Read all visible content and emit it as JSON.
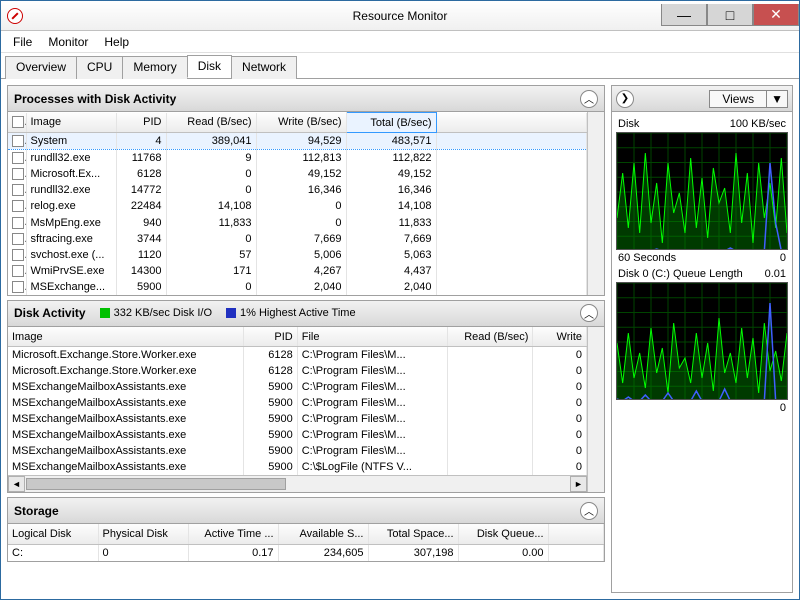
{
  "window": {
    "title": "Resource Monitor"
  },
  "menu": [
    "File",
    "Monitor",
    "Help"
  ],
  "tabs": [
    "Overview",
    "CPU",
    "Memory",
    "Disk",
    "Network"
  ],
  "activeTab": "Disk",
  "processesPanel": {
    "title": "Processes with Disk Activity",
    "columns": [
      "Image",
      "PID",
      "Read (B/sec)",
      "Write (B/sec)",
      "Total (B/sec)"
    ],
    "sortedCol": 4,
    "rows": [
      [
        "System",
        "4",
        "389,041",
        "94,529",
        "483,571"
      ],
      [
        "rundll32.exe",
        "11768",
        "9",
        "112,813",
        "112,822"
      ],
      [
        "Microsoft.Ex...",
        "6128",
        "0",
        "49,152",
        "49,152"
      ],
      [
        "rundll32.exe",
        "14772",
        "0",
        "16,346",
        "16,346"
      ],
      [
        "relog.exe",
        "22484",
        "14,108",
        "0",
        "14,108"
      ],
      [
        "MsMpEng.exe",
        "940",
        "11,833",
        "0",
        "11,833"
      ],
      [
        "sftracing.exe",
        "3744",
        "0",
        "7,669",
        "7,669"
      ],
      [
        "svchost.exe (...",
        "1120",
        "57",
        "5,006",
        "5,063"
      ],
      [
        "WmiPrvSE.exe",
        "14300",
        "171",
        "4,267",
        "4,437"
      ],
      [
        "MSExchange...",
        "5900",
        "0",
        "2,040",
        "2,040"
      ]
    ],
    "selectedRow": 0
  },
  "diskActivityPanel": {
    "title": "Disk Activity",
    "legend1": {
      "color": "#00c000",
      "text": "332 KB/sec Disk I/O"
    },
    "legend2": {
      "color": "#2030c0",
      "text": "1% Highest Active Time"
    },
    "columns": [
      "Image",
      "PID",
      "File",
      "Read (B/sec)",
      "Write"
    ],
    "rows": [
      [
        "Microsoft.Exchange.Store.Worker.exe",
        "6128",
        "C:\\Program Files\\M...",
        "",
        "0"
      ],
      [
        "Microsoft.Exchange.Store.Worker.exe",
        "6128",
        "C:\\Program Files\\M...",
        "",
        "0"
      ],
      [
        "MSExchangeMailboxAssistants.exe",
        "5900",
        "C:\\Program Files\\M...",
        "",
        "0"
      ],
      [
        "MSExchangeMailboxAssistants.exe",
        "5900",
        "C:\\Program Files\\M...",
        "",
        "0"
      ],
      [
        "MSExchangeMailboxAssistants.exe",
        "5900",
        "C:\\Program Files\\M...",
        "",
        "0"
      ],
      [
        "MSExchangeMailboxAssistants.exe",
        "5900",
        "C:\\Program Files\\M...",
        "",
        "0"
      ],
      [
        "MSExchangeMailboxAssistants.exe",
        "5900",
        "C:\\Program Files\\M...",
        "",
        "0"
      ],
      [
        "MSExchangeMailboxAssistants.exe",
        "5900",
        "C:\\$LogFile (NTFS V...",
        "",
        "0"
      ]
    ]
  },
  "storagePanel": {
    "title": "Storage",
    "columns": [
      "Logical Disk",
      "Physical Disk",
      "Active Time ...",
      "Available S...",
      "Total Space...",
      "Disk Queue..."
    ],
    "rows": [
      [
        "C:",
        "0",
        "0.17",
        "234,605",
        "307,198",
        "0.00"
      ]
    ]
  },
  "rightPanel": {
    "viewsLabel": "Views",
    "graph1": {
      "topLeft": "Disk",
      "topRight": "100 KB/sec",
      "bottomLeft": "60 Seconds",
      "bottomRight": "0"
    },
    "graph2": {
      "topLeft": "Disk 0 (C:) Queue Length",
      "topRight": "0.01",
      "bottomRight": "0"
    }
  },
  "graphStyle": {
    "bg": "#000000",
    "gridColor": "#004400",
    "seriesColor": "#00ff00",
    "series2Color": "#4060ff",
    "width": 170,
    "height": 118,
    "gridCols": 10,
    "gridRows": 8,
    "series1_a": [
      85,
      40,
      95,
      30,
      100,
      20,
      90,
      50,
      110,
      30,
      80,
      60,
      100,
      25,
      95,
      45,
      105,
      35,
      70,
      55,
      100,
      20,
      90,
      40,
      110,
      30,
      85,
      50,
      95,
      25,
      100
    ],
    "series1_b": [
      60,
      100,
      50,
      95,
      70,
      105,
      45,
      90,
      65,
      110,
      40,
      85,
      75,
      100,
      50,
      95,
      60,
      108,
      35,
      90,
      70,
      100,
      45,
      95,
      55,
      110,
      40,
      88,
      68,
      98,
      50
    ],
    "series2_a": [
      118,
      118,
      118,
      118,
      117,
      118,
      118,
      116,
      118,
      118,
      118,
      118,
      117,
      118,
      118,
      118,
      118,
      118,
      118,
      118,
      115,
      118,
      118,
      118,
      118,
      118,
      118,
      30,
      90,
      118,
      118
    ],
    "series2_b": [
      116,
      118,
      114,
      118,
      118,
      112,
      118,
      118,
      118,
      110,
      118,
      118,
      118,
      118,
      108,
      118,
      118,
      118,
      118,
      106,
      118,
      118,
      118,
      118,
      118,
      118,
      118,
      20,
      118,
      118,
      118
    ]
  }
}
